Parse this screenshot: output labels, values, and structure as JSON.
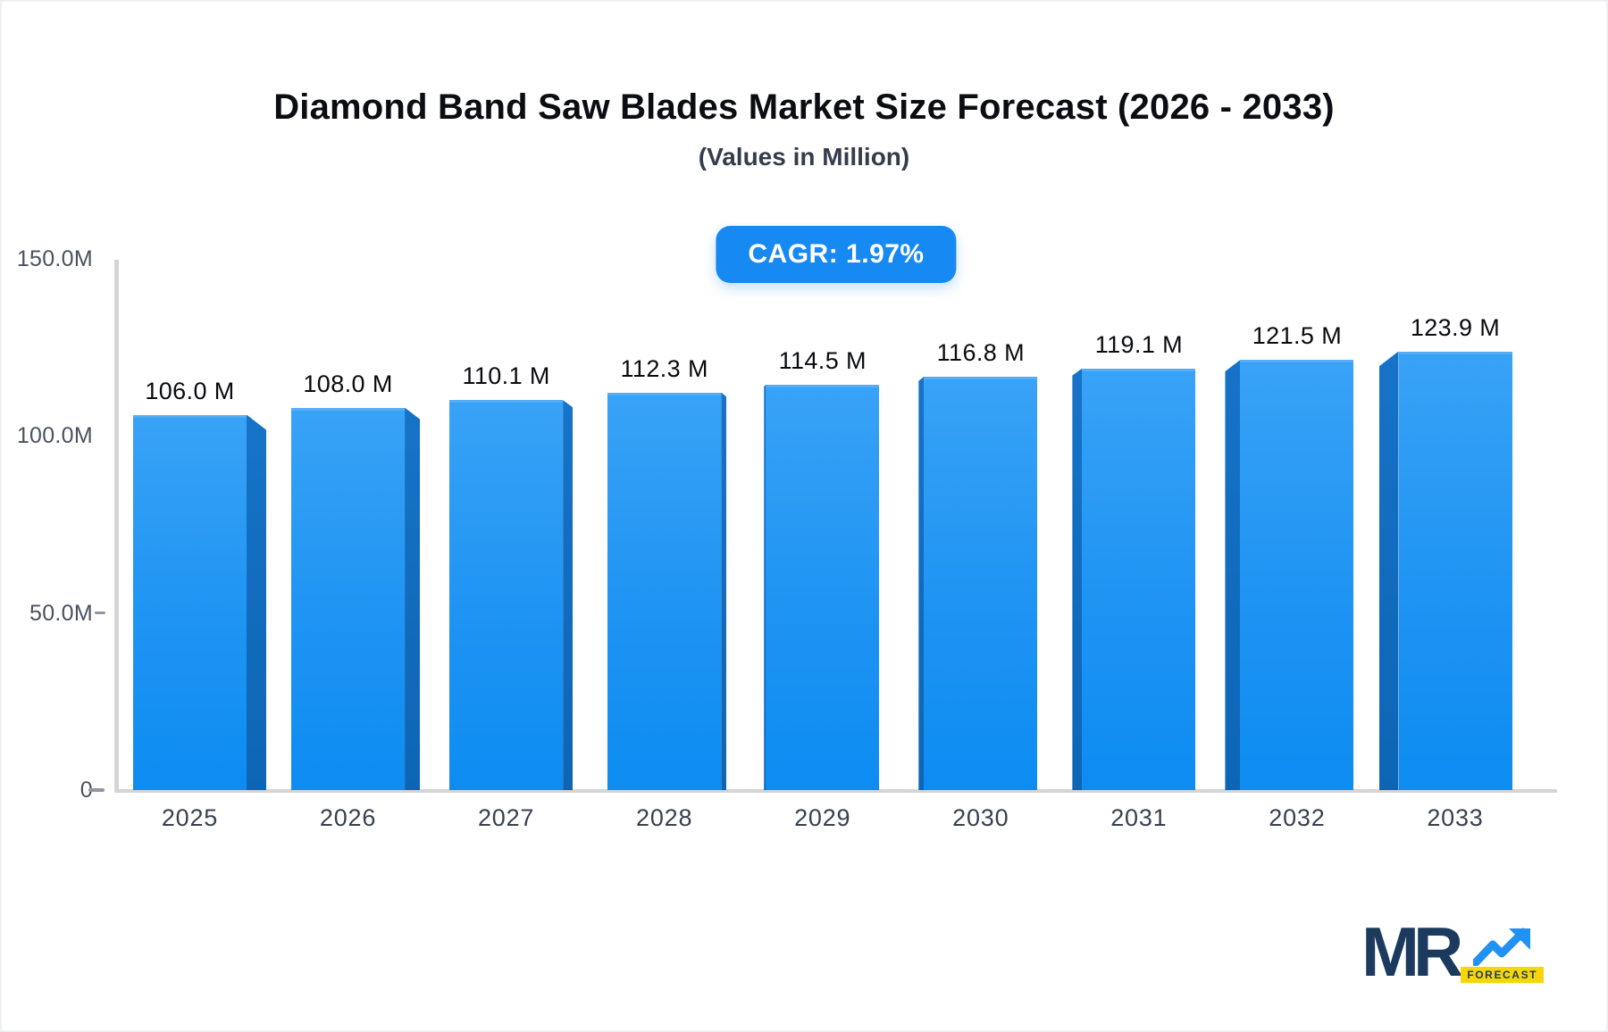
{
  "header": {
    "title": "Diamond Band Saw Blades Market Size Forecast (2026 - 2033)",
    "subtitle": "(Values in Million)",
    "badge": "CAGR: 1.97%"
  },
  "chart_data": {
    "type": "bar",
    "title": "Diamond Band Saw Blades Market Size Forecast (2026 - 2033)",
    "subtitle": "(Values in Million)",
    "annotation_badge": "CAGR: 1.97%",
    "categories": [
      "2025",
      "2026",
      "2027",
      "2028",
      "2029",
      "2030",
      "2031",
      "2032",
      "2033"
    ],
    "values": [
      106.0,
      108.0,
      110.1,
      112.3,
      114.5,
      116.8,
      119.1,
      121.5,
      123.9
    ],
    "bar_labels": [
      "106.0 M",
      "108.0 M",
      "110.1 M",
      "112.3 M",
      "114.5 M",
      "116.8 M",
      "119.1 M",
      "121.5 M",
      "123.9 M"
    ],
    "unit": "Million",
    "xlabel": "",
    "ylabel": "",
    "ylim": [
      0,
      150
    ],
    "y_ticks": [
      {
        "value": 150,
        "label": "150.0M"
      },
      {
        "value": 100,
        "label": "100.0M"
      },
      {
        "value": 50,
        "label": "50.0M"
      },
      {
        "value": 0,
        "label": "0"
      }
    ],
    "grid": false,
    "legend": "none",
    "style_3d": true,
    "colors": {
      "bar_face_top": "#38a2f6",
      "bar_face_bottom": "#0d8cf2",
      "bar_side": "#0e6cc0",
      "badge_background": "#1789f3",
      "badge_text": "#ffffff",
      "axis_line": "#d4d5da",
      "axis_text": "#4a5260",
      "category_text": "#38404f",
      "value_text": "#0a0b0e"
    }
  },
  "logo": {
    "mr": "MR",
    "forecast": "FORECAST",
    "colors": {
      "navy": "#1c3a5e",
      "yellow": "#f6d60a",
      "arrow_blue": "#2191f4"
    }
  }
}
